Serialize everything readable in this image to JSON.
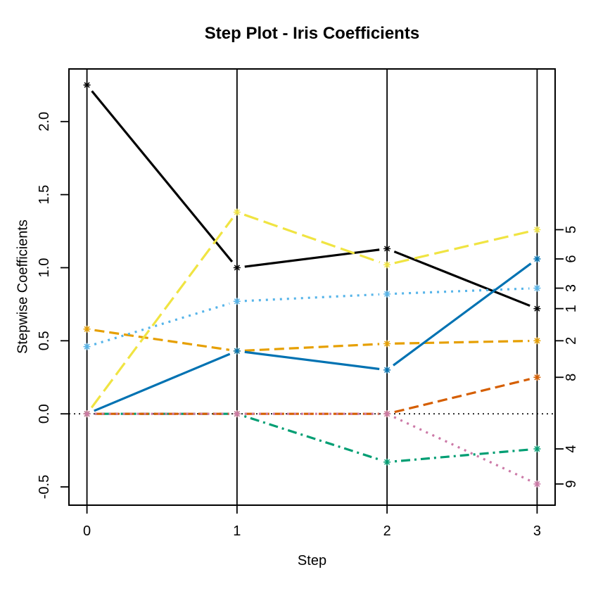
{
  "figure": {
    "background": "#FFFFFF",
    "foreground": "#000000"
  },
  "chart_data": {
    "type": "line",
    "title": "Step Plot - Iris Coefficients",
    "xlabel": "Step",
    "ylabel": "Stepwise Coefficients",
    "x": [
      0,
      1,
      2,
      3
    ],
    "xlim": [
      -0.12,
      3.12
    ],
    "ylim": [
      -0.625,
      2.36
    ],
    "x_ticks": [
      {
        "value": 0,
        "label": "0"
      },
      {
        "value": 1,
        "label": "1"
      },
      {
        "value": 2,
        "label": "2"
      },
      {
        "value": 3,
        "label": "3"
      }
    ],
    "y_ticks": [
      {
        "value": 2.0,
        "label": "2.0"
      },
      {
        "value": 1.5,
        "label": "1.5"
      },
      {
        "value": 1.0,
        "label": "1.0"
      },
      {
        "value": 0.5,
        "label": "0.5"
      },
      {
        "value": 0.0,
        "label": "0.0"
      },
      {
        "value": -0.5,
        "label": "-0.5"
      }
    ],
    "vertical_lines": [
      0,
      1,
      2,
      3
    ],
    "zero_line": {
      "value": 0,
      "style": "dotted",
      "color": "#000000"
    },
    "marker": "*",
    "grid": false,
    "legend_position": "right-axis",
    "series": [
      {
        "name": "1",
        "right_label": "1",
        "color": "#000000",
        "linetype": "solid",
        "values": [
          2.25,
          1.0,
          1.13,
          0.72
        ]
      },
      {
        "name": "2",
        "right_label": "2",
        "color": "#E69F00",
        "linetype": "dashed",
        "values": [
          0.58,
          0.43,
          0.48,
          0.5
        ]
      },
      {
        "name": "3",
        "right_label": "3",
        "color": "#56B4E9",
        "linetype": "dotted",
        "values": [
          0.46,
          0.77,
          0.82,
          0.86
        ]
      },
      {
        "name": "4",
        "right_label": "4",
        "color": "#009E73",
        "linetype": "dotdash",
        "values": [
          0.0,
          0.0,
          -0.33,
          -0.24
        ]
      },
      {
        "name": "5",
        "right_label": "5",
        "color": "#F0E442",
        "linetype": "longdash",
        "values": [
          0.0,
          1.38,
          1.02,
          1.26
        ]
      },
      {
        "name": "6",
        "right_label": "6",
        "color": "#0072B2",
        "linetype": "solid",
        "values": [
          0.0,
          0.43,
          0.3,
          1.06
        ]
      },
      {
        "name": "8",
        "right_label": "8",
        "color": "#D55E00",
        "linetype": "dashed",
        "values": [
          0.0,
          0.0,
          0.0,
          0.25
        ]
      },
      {
        "name": "9",
        "right_label": "9",
        "color": "#CC79A7",
        "linetype": "dotted",
        "values": [
          0.0,
          0.0,
          0.0,
          -0.48
        ]
      }
    ]
  }
}
